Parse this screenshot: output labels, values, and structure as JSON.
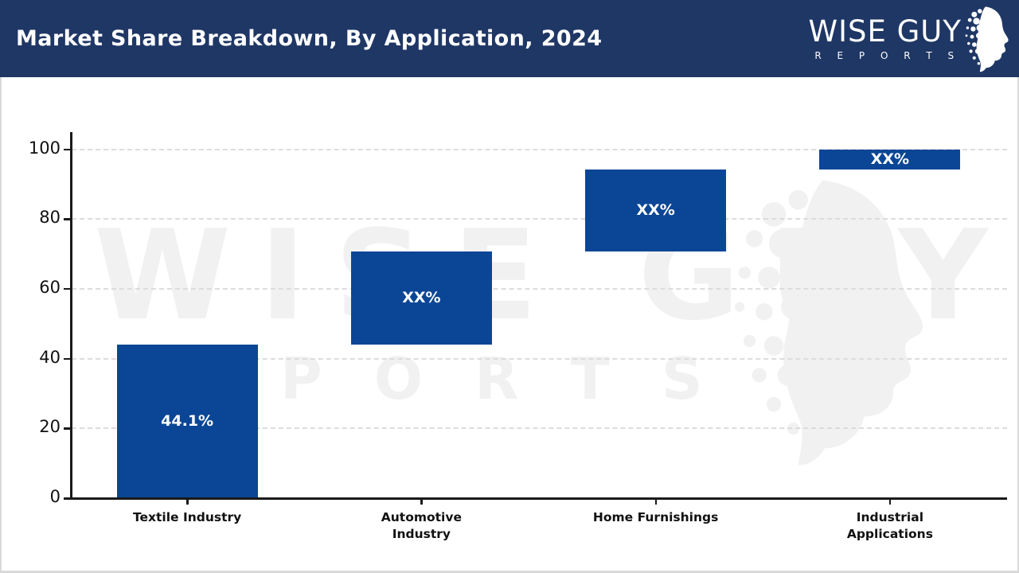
{
  "header": {
    "title": "Market Share Breakdown, By Application, 2024",
    "bg_color": "#1F3765",
    "logo": {
      "line1": "WISE GUY",
      "line2": "R E P O R T S"
    }
  },
  "watermark": {
    "line1": "WISE GUY",
    "line2": "P O R T S"
  },
  "chart_data": {
    "type": "bar",
    "subtype": "waterfall-segments",
    "title": "Market Share Breakdown, By Application, 2024",
    "categories": [
      "Textile Industry",
      "Automotive\nIndustry",
      "Home Furnishings",
      "Industrial\nApplications"
    ],
    "segments": [
      {
        "category": "Textile Industry",
        "start": 0,
        "end": 44.1,
        "value_label": "44.1%"
      },
      {
        "category": "Automotive Industry",
        "start": 44.1,
        "end": 70.7,
        "value_label": "XX%"
      },
      {
        "category": "Home Furnishings",
        "start": 70.7,
        "end": 94.2,
        "value_label": "XX%"
      },
      {
        "category": "Industrial Applications",
        "start": 94.2,
        "end": 100,
        "value_label": "XX%"
      }
    ],
    "y_ticks": [
      0,
      20,
      40,
      60,
      80,
      100
    ],
    "ylim": [
      0,
      105
    ],
    "xlabel": "",
    "ylabel": "",
    "grid": "horizontal-dashed",
    "legend": "none",
    "bar_color": "#0B4696",
    "bar_label_color": "#FFFFFF",
    "grid_color": "#DCDCDC",
    "axis_color": "#1A1A1A"
  }
}
